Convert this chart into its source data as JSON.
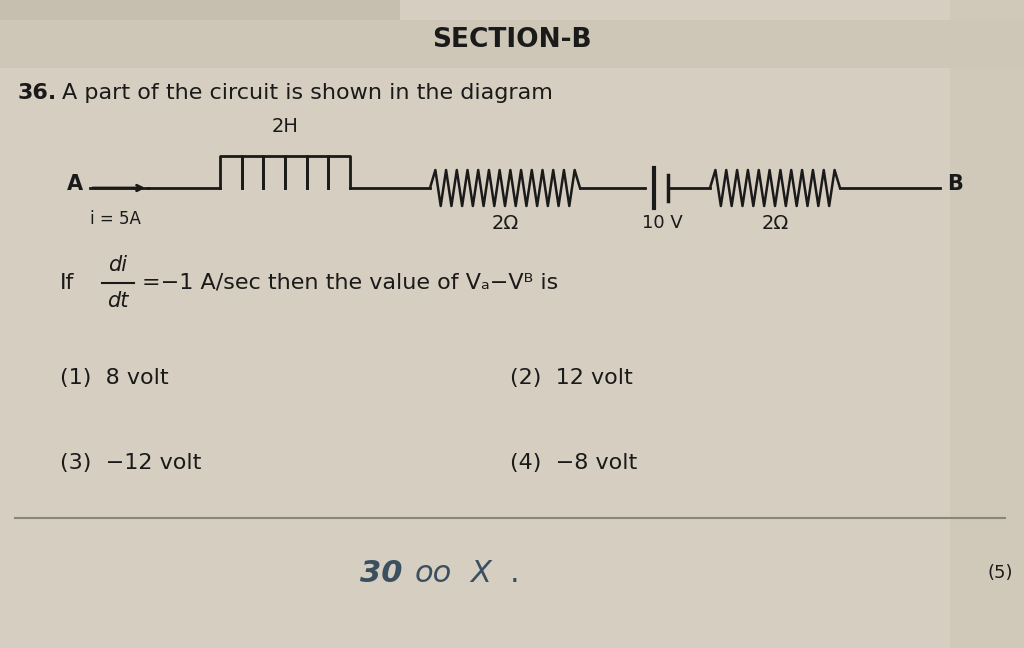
{
  "title": "SECTION-B",
  "question_num": "36.",
  "question_text": "A part of the circuit is shown in the diagram",
  "condition_text": "If",
  "equals_text": "=−1 A/sec then the value of Vₐ−Vᴮ is",
  "options": [
    "(1)  8 volt",
    "(2)  12 volt",
    "(3)  −12 volt",
    "(4)  −8 volt"
  ],
  "circuit_labels": {
    "A": "A",
    "B": "B",
    "i_label": "i = 5A",
    "inductor_label": "2H",
    "R1_label": "2Ω",
    "battery_label": "10 V",
    "R2_label": "2Ω"
  },
  "paper_color": "#d8cfc0",
  "paper_color2": "#ccc4b4",
  "title_stripe_color": "#c8bfae",
  "text_color": "#1a1a1a",
  "circuit_color": "#1a1a1a",
  "bottom_text": "30",
  "bottom_text2": "oo",
  "bottom_text3": "X",
  "bottom_pg": "(5)"
}
